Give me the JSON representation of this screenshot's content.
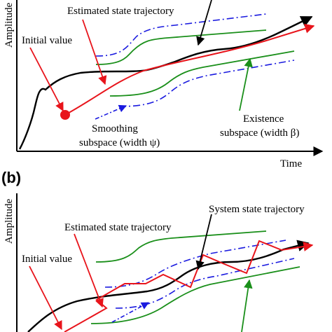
{
  "panel_a": {
    "y_axis_label": "Amplitude",
    "x_axis_label": "Time",
    "labels": {
      "estimated": "Estimated state trajectory",
      "initial": "Initial value",
      "smoothing_line1": "Smoothing",
      "smoothing_line2": "subspace (width ψ)",
      "existence_line1": "Existence",
      "existence_line2": "subspace (width β)"
    }
  },
  "panel_b": {
    "panel_label": "(b)",
    "y_axis_label": "Amplitude",
    "labels": {
      "system": "System state trajectory",
      "estimated": "Estimated state trajectory",
      "initial": "Initial value"
    }
  },
  "colors": {
    "system_trajectory": "#000000",
    "estimated_trajectory": "#e8141b",
    "existence_bounds": "#1a8f1a",
    "smoothing_bounds": "#1a1adf"
  }
}
